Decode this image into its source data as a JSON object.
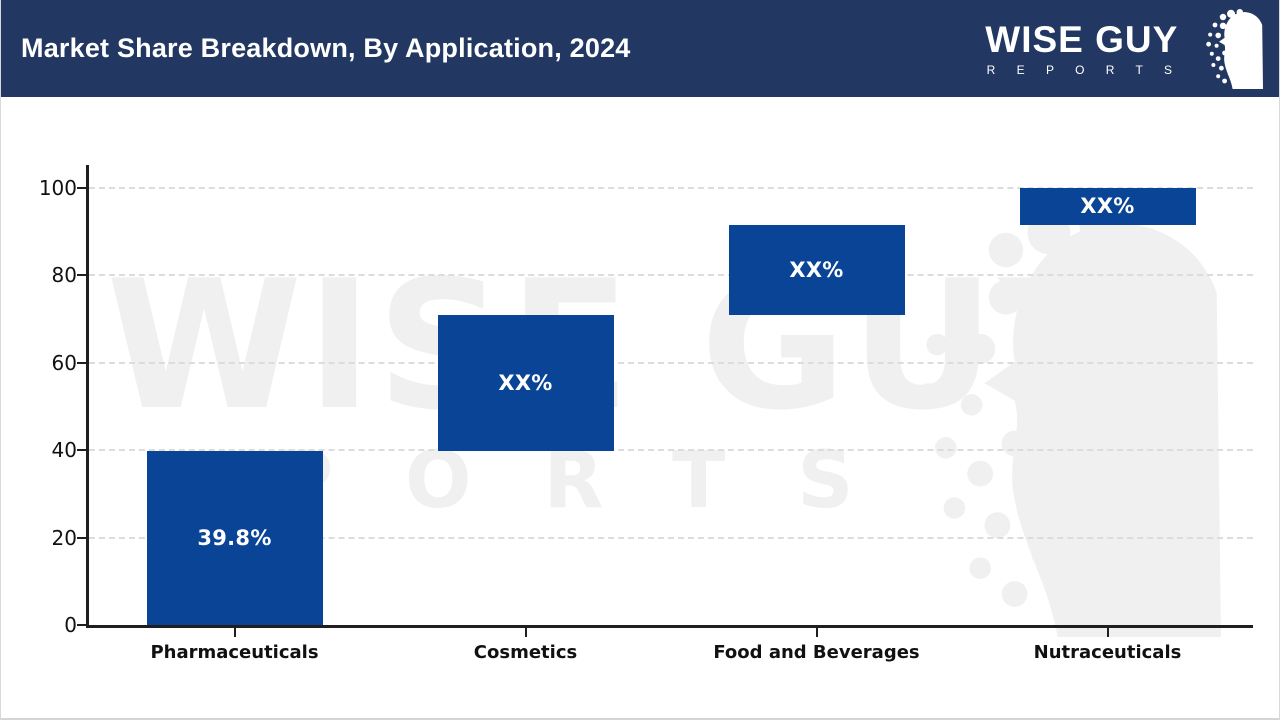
{
  "header": {
    "title": "Market Share Breakdown, By Application, 2024",
    "logo": {
      "line1": "WISE GUY",
      "line2": "REPORTS"
    },
    "background_color": "#223862"
  },
  "watermark": {
    "line1": "WISE GUY",
    "line2": "PORTS",
    "color": "#f0f0f0"
  },
  "chart_data": {
    "type": "bar",
    "subtype": "waterfall",
    "title": "Market Share Breakdown, By Application, 2024",
    "categories": [
      "Pharmaceuticals",
      "Cosmetics",
      "Food and Beverages",
      "Nutraceuticals"
    ],
    "segments": [
      {
        "category": "Pharmaceuticals",
        "start": 0,
        "end": 39.8,
        "label": "39.8%"
      },
      {
        "category": "Cosmetics",
        "start": 39.8,
        "end": 70.8,
        "label": "XX%"
      },
      {
        "category": "Food and Beverages",
        "start": 70.8,
        "end": 91.4,
        "label": "XX%"
      },
      {
        "category": "Nutraceuticals",
        "start": 91.4,
        "end": 100,
        "label": "XX%"
      }
    ],
    "xlabel": "",
    "ylabel": "",
    "ylim": [
      0,
      100
    ],
    "yticks": [
      0,
      20,
      40,
      60,
      80,
      100
    ],
    "grid": "horizontal-dashed",
    "legend": "none",
    "bar_color": "#0a4496",
    "bar_label_color": "#ffffff",
    "grid_color": "#dcdcdc",
    "axis_color": "#1f1f1f"
  }
}
